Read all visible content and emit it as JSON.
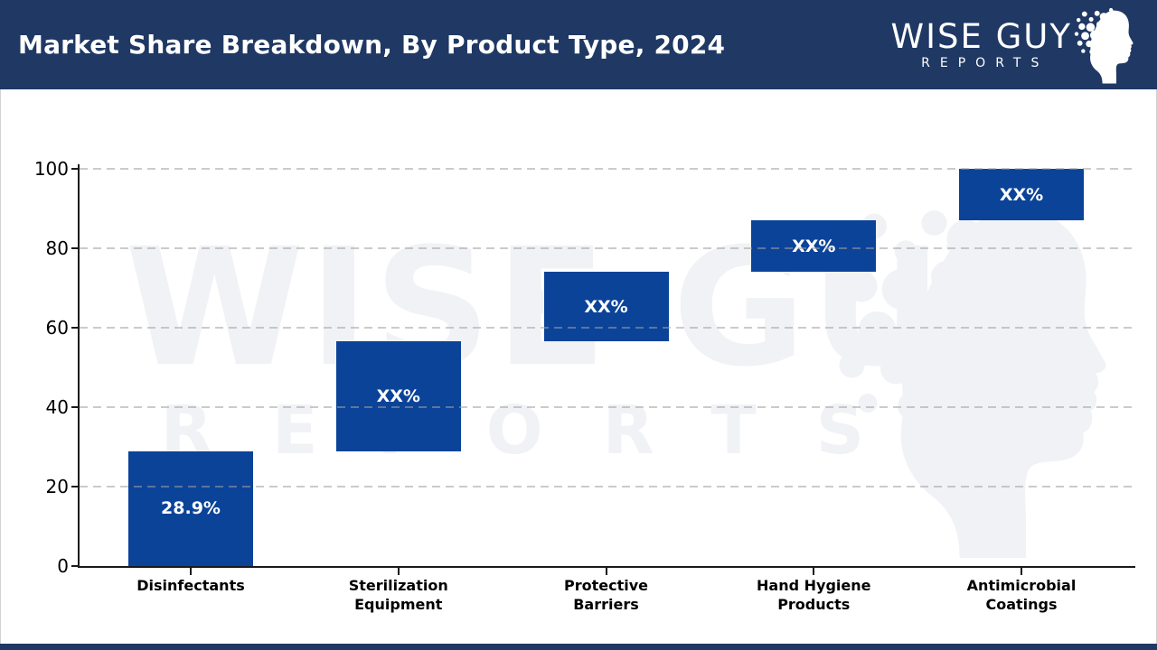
{
  "header": {
    "title": "Market Share Breakdown, By Product Type, 2024",
    "logo": {
      "primary": "WISE GUY",
      "secondary": "REPORTS"
    }
  },
  "watermark": {
    "primary": "WISE GUY",
    "secondary": "REPORTS"
  },
  "chart_data": {
    "type": "bar",
    "subtype": "waterfall",
    "title": "Market Share Breakdown, By Product Type, 2024",
    "categories": [
      "Disinfectants",
      "Sterilization Equipment",
      "Protective Barriers",
      "Hand Hygiene Products",
      "Antimicrobial Coatings"
    ],
    "axis_label_lines": [
      [
        "Disinfectants"
      ],
      [
        "Sterilization",
        "Equipment"
      ],
      [
        "Protective",
        "Barriers"
      ],
      [
        "Hand Hygiene",
        "Products"
      ],
      [
        "Antimicrobial",
        "Coatings"
      ]
    ],
    "segments": [
      {
        "category": "Disinfectants",
        "start": 0,
        "end": 28.9,
        "label": "28.9%"
      },
      {
        "category": "Sterilization Equipment",
        "start": 28.9,
        "end": 56.5,
        "label": "XX%"
      },
      {
        "category": "Protective Barriers",
        "start": 56.5,
        "end": 74,
        "label": "XX%"
      },
      {
        "category": "Hand Hygiene Products",
        "start": 74,
        "end": 87,
        "label": "XX%"
      },
      {
        "category": "Antimicrobial Coatings",
        "start": 87,
        "end": 100,
        "label": "XX%"
      }
    ],
    "xlabel": "",
    "ylabel": "",
    "ylim": [
      0,
      100
    ],
    "yticks": [
      0,
      20,
      40,
      60,
      80,
      100
    ],
    "grid": {
      "horizontal": true,
      "style": "dashed"
    },
    "legend": null
  },
  "colors": {
    "header_bg": "#1f3864",
    "bar": "#0b4399",
    "axis": "#1a1a1a",
    "grid_rgba": "rgba(160,160,160,0.55)",
    "bar_label": "#ffffff",
    "watermark": "#f1f2f5"
  }
}
